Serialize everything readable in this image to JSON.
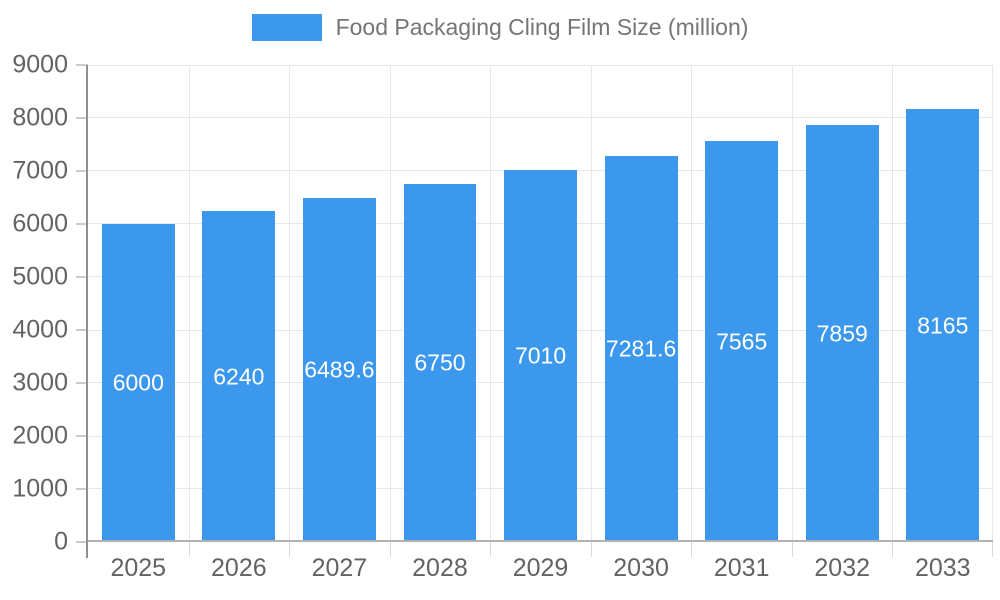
{
  "legend": {
    "label": "Food Packaging Cling Film Size (million)",
    "swatch_color": "#3B98EC"
  },
  "chart_data": {
    "type": "bar",
    "title": "Food Packaging Cling Film Size (million)",
    "categories": [
      "2025",
      "2026",
      "2027",
      "2028",
      "2029",
      "2030",
      "2031",
      "2032",
      "2033"
    ],
    "values": [
      6000,
      6240,
      6489.6,
      6750,
      7010,
      7281.6,
      7565,
      7859,
      8165
    ],
    "value_labels": [
      "6000",
      "6240",
      "6489.6",
      "6750",
      "7010",
      "7281.6",
      "7565",
      "7859",
      "8165"
    ],
    "xlabel": "",
    "ylabel": "",
    "ylim": [
      0,
      9000
    ],
    "ytick_step": 1000,
    "ytick_labels": [
      "0",
      "1000",
      "2000",
      "3000",
      "4000",
      "5000",
      "6000",
      "7000",
      "8000",
      "9000"
    ],
    "grid": true,
    "legend_position": "top",
    "bar_color": "#3B98EC",
    "bar_label_color": "#ffffff",
    "axis_text_color": "#636363",
    "legend_text_color": "#757575",
    "gridline_color": "#e7e7e7"
  }
}
